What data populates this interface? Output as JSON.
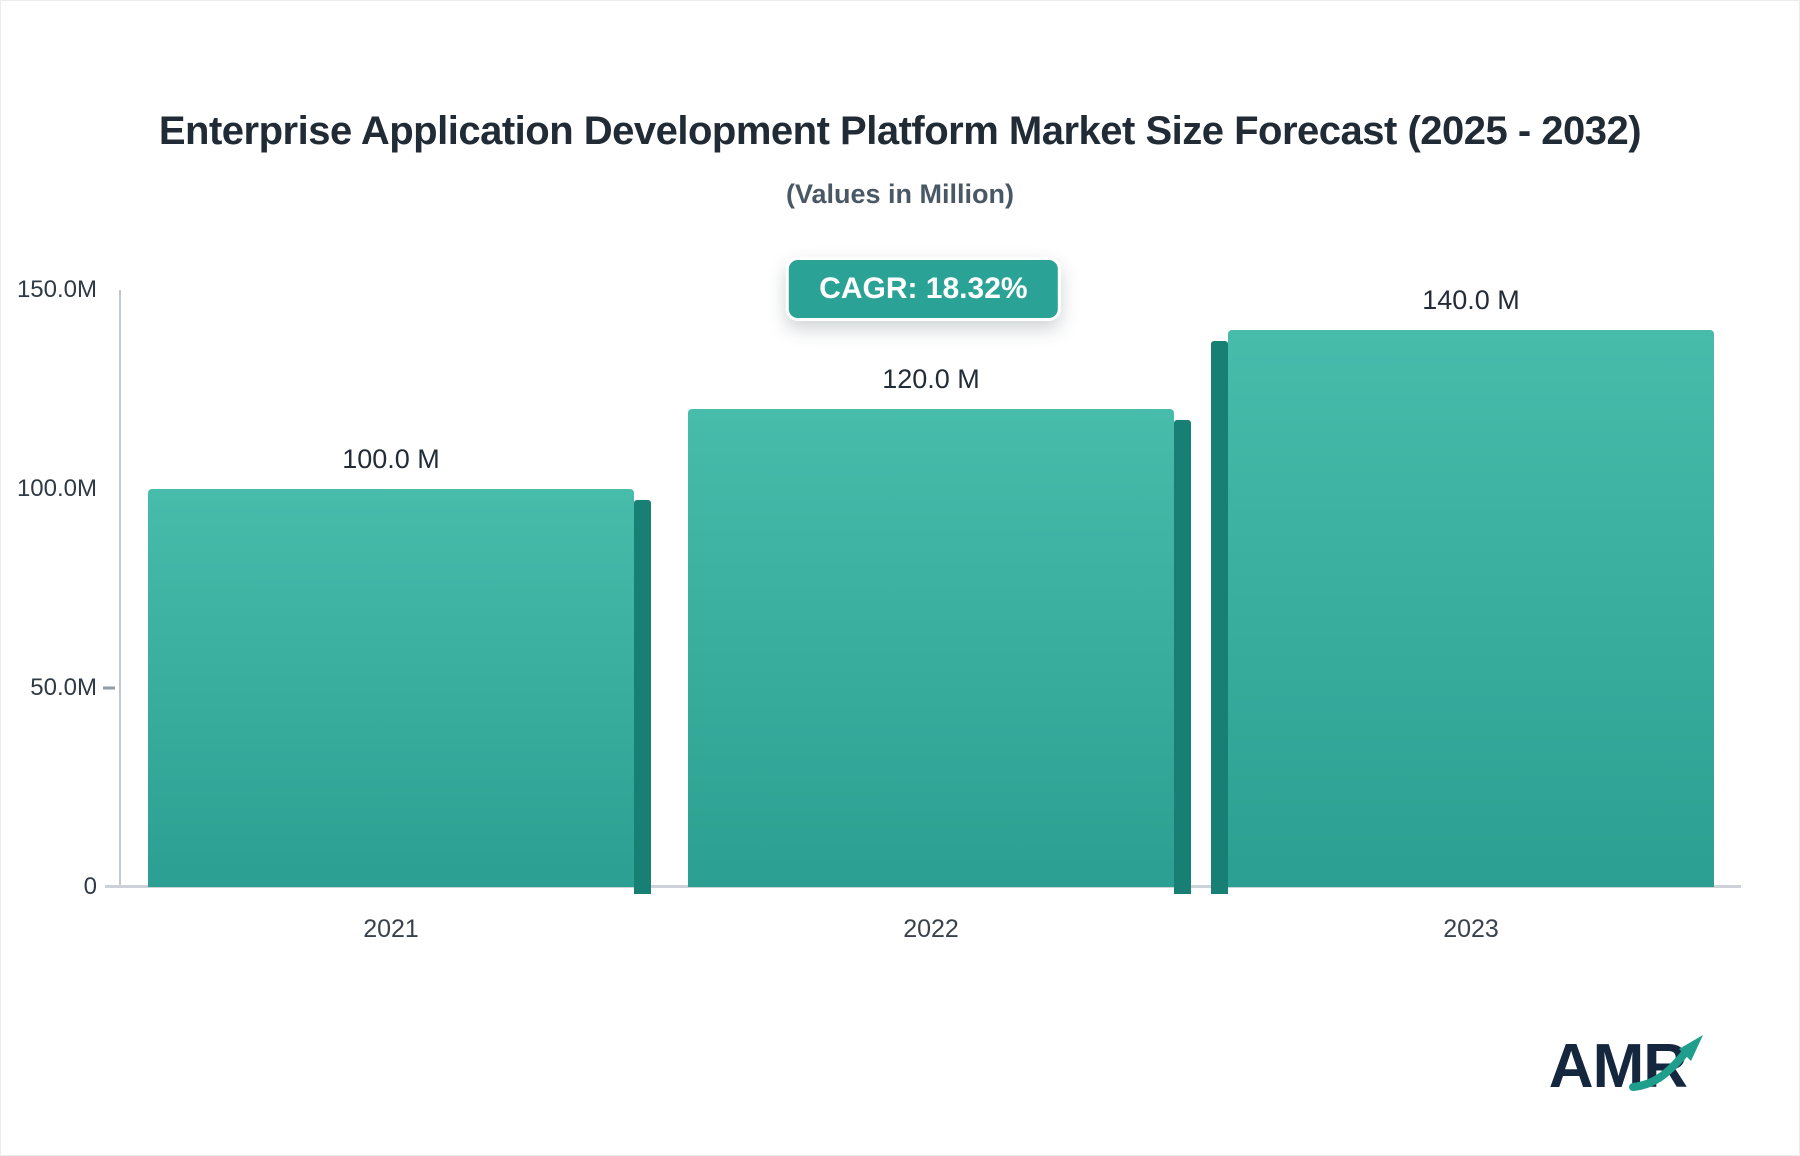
{
  "header": {
    "title": "Enterprise Application Development Platform Market Size Forecast (2025 - 2032)",
    "subtitle": "(Values in Million)"
  },
  "cagr_badge": {
    "label": "CAGR: 18.32%",
    "bg_color": "#2aa396",
    "text_color": "#ffffff"
  },
  "chart_data": {
    "type": "bar",
    "title": "Enterprise Application Development Platform Market Size Forecast (2025 - 2032)",
    "subtitle": "(Values in Million)",
    "unit": "Million",
    "categories": [
      "2021",
      "2022",
      "2023"
    ],
    "values": [
      100,
      120,
      140
    ],
    "bar_labels": [
      "100.0 M",
      "120.0 M",
      "140.0 M"
    ],
    "xlabel": "",
    "ylabel": "",
    "ylim": [
      0,
      150
    ],
    "yticks": [
      {
        "value": 150,
        "label": "150.0M",
        "dash": false
      },
      {
        "value": 100,
        "label": "100.0M",
        "dash": false
      },
      {
        "value": 50,
        "label": "50.0M",
        "dash": true
      },
      {
        "value": 0,
        "label": "0",
        "dash": false
      }
    ],
    "grid": false,
    "legend_position": "none",
    "bar_color_top": "#47bcab",
    "bar_color_bottom": "#2b9f91",
    "bar_side_color": "#187f74"
  },
  "logo": {
    "text": "AMR",
    "arrow_color": "#1f9e8e"
  }
}
